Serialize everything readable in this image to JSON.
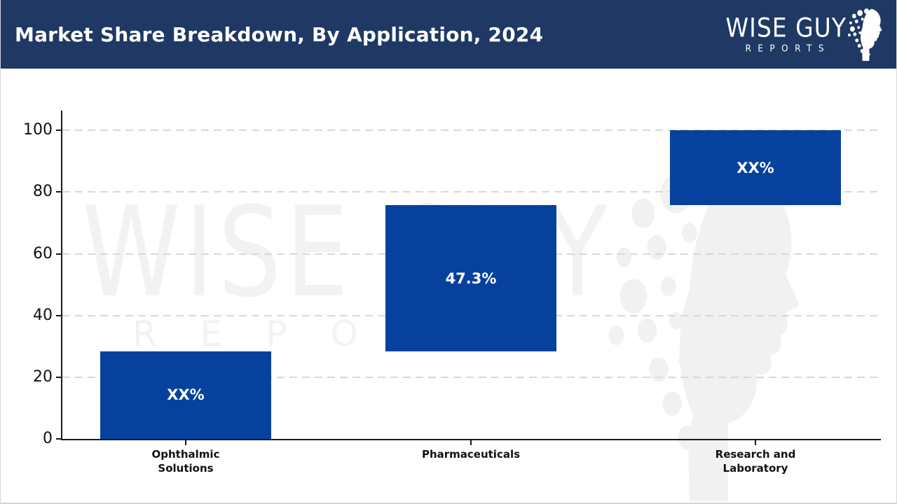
{
  "header": {
    "title": "Market Share Breakdown, By Application, 2024",
    "logo_line1": "WISE GUY",
    "logo_line2": "REPORTS"
  },
  "watermark": {
    "line1": "WISE GUY",
    "line2": "REPORTS"
  },
  "chart_data": {
    "type": "bar",
    "subtype": "floating-segment-waterfall",
    "title": "Market Share Breakdown, By Application, 2024",
    "categories": [
      "Ophthalmic\nSolutions",
      "Pharmaceuticals",
      "Research and\nLaboratory"
    ],
    "segments": [
      {
        "category": "Ophthalmic Solutions",
        "start": 0,
        "end": 28.4,
        "value": 28.4,
        "value_label": "XX%"
      },
      {
        "category": "Pharmaceuticals",
        "start": 28.4,
        "end": 75.7,
        "value": 47.3,
        "value_label": "47.3%"
      },
      {
        "category": "Research and Laboratory",
        "start": 75.7,
        "end": 100,
        "value": 24.3,
        "value_label": "XX%"
      }
    ],
    "ylim": [
      0,
      100
    ],
    "yticks": [
      0,
      20,
      40,
      60,
      80,
      100
    ],
    "xlabel": "",
    "ylabel": "",
    "grid": "horizontal-dashed",
    "legend": "none",
    "bar_color": "#06429d",
    "bar_label_color": "#ffffff"
  },
  "colors": {
    "header_bg": "#1f3864",
    "header_text": "#ffffff",
    "bar": "#06429d",
    "axis": "#1a1a1a",
    "grid": "#d8d8d8",
    "tick_label": "#111111",
    "watermark": "#f2f2f2",
    "page_bg": "#ffffff",
    "page_border": "#d9d9d9"
  }
}
